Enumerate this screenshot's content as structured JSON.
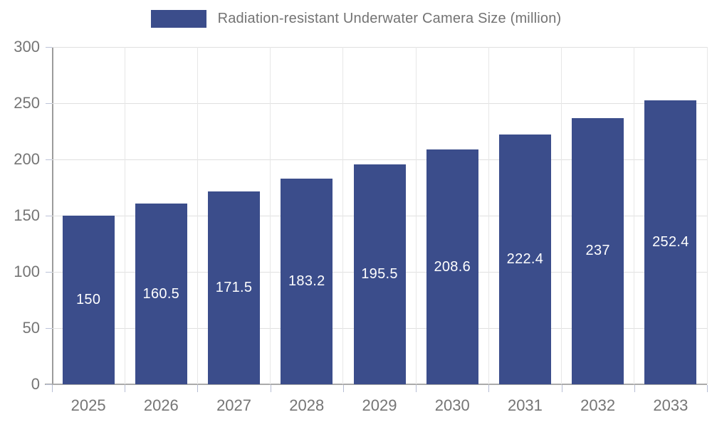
{
  "legend": {
    "label": "Radiation-resistant Underwater Camera Size (million)"
  },
  "colors": {
    "bar": "#3b4d8b",
    "axis_text": "#757575",
    "grid_horizontal": "#e0e0e0",
    "grid_vertical": "#e7e7e7",
    "axis_line": "#9b9b9b",
    "tick_mark": "#b6bdd4",
    "value_label": "#ffffff"
  },
  "chart_data": {
    "type": "bar",
    "title": "Radiation-resistant Underwater Camera Size (million)",
    "categories": [
      "2025",
      "2026",
      "2027",
      "2028",
      "2029",
      "2030",
      "2031",
      "2032",
      "2033"
    ],
    "values": [
      150,
      160.5,
      171.5,
      183.2,
      195.5,
      208.6,
      222.4,
      237,
      252.4
    ],
    "value_labels": [
      "150",
      "160.5",
      "171.5",
      "183.2",
      "195.5",
      "208.6",
      "222.4",
      "237",
      "252.4"
    ],
    "xlabel": "",
    "ylabel": "",
    "ylim": [
      0,
      300
    ],
    "yticks": [
      0,
      50,
      100,
      150,
      200,
      250,
      300
    ],
    "grid": true,
    "legend_position": "top"
  }
}
